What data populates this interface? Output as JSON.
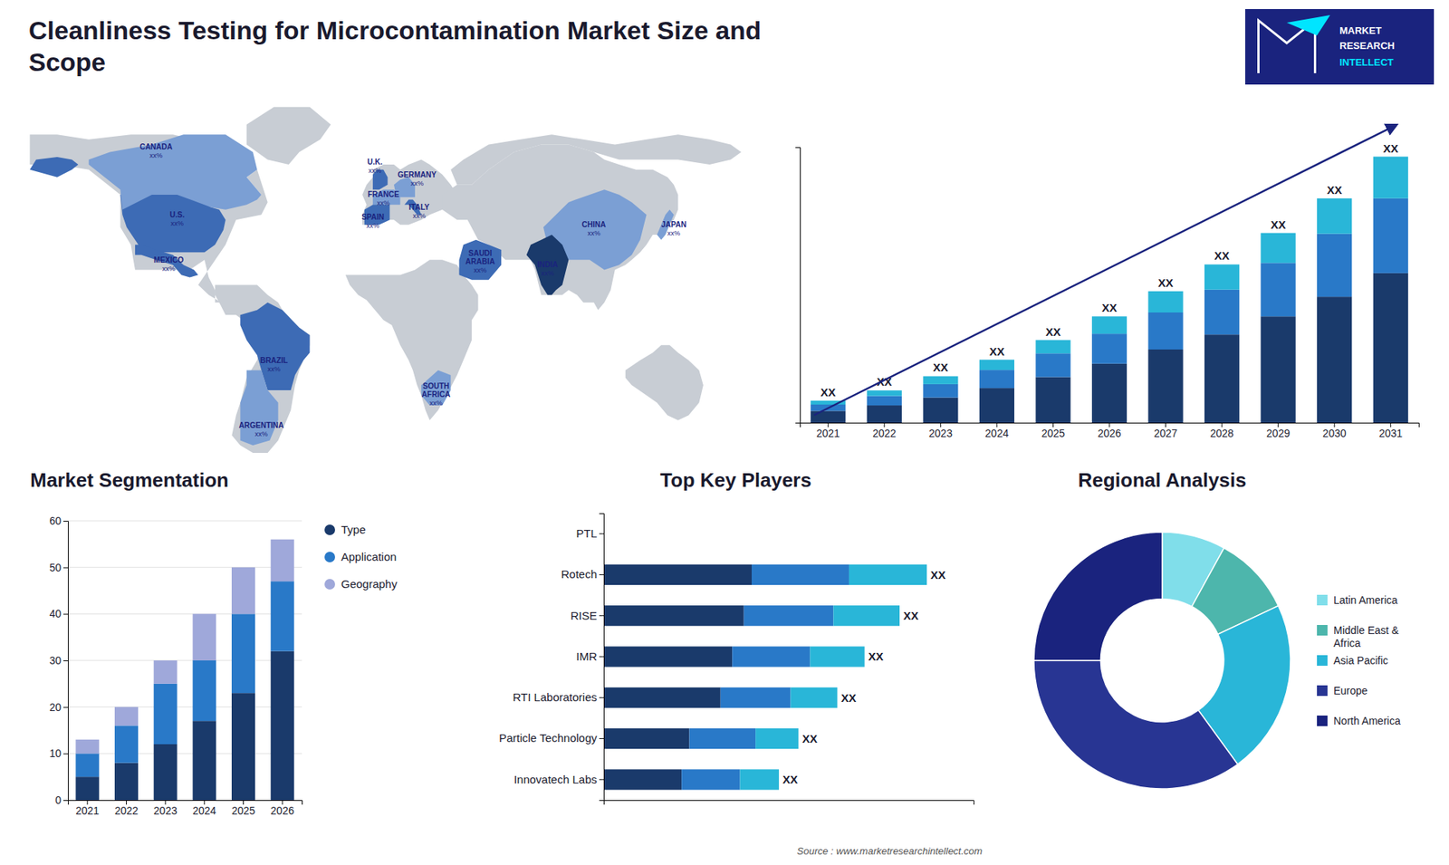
{
  "chart_data": [
    {
      "type": "map",
      "title": "Cleanliness Testing for Microcontamination Market Size and\nScope",
      "categories": [
        "CANADA",
        "U.S.",
        "MEXICO",
        "BRAZIL",
        "ARGENTINA",
        "U.K.",
        "FRANCE",
        "SPAIN",
        "GERMANY",
        "ITALY",
        "SAUDI\nARABIA",
        "SOUTH\nAFRICA",
        "CHINA",
        "INDIA",
        "JAPAN"
      ],
      "annotations": [
        "xx%",
        "xx%",
        "xx%",
        "xx%",
        "xx%",
        "xx%",
        "xx%",
        "xx%",
        "xx%",
        "xx%",
        "xx%",
        "xx%",
        "xx%",
        "xx%",
        "xx%"
      ],
      "colors": [
        "#7b9fd4",
        "#3d6bb5",
        "#3d6bb5",
        "#3d6bb5",
        "#7b9fd4",
        "#3d6bb5",
        "#7b9fd4",
        "#3d6bb5",
        "#7b9fd4",
        "#3d6bb5",
        "#3d6bb5",
        "#7b9fd4",
        "#7b9fd4",
        "#1a3a6b",
        "#7b9fd4"
      ],
      "color": "#c8cdd4"
    },
    {
      "type": "bar",
      "stacked": true,
      "categories": [
        "2021",
        "2022",
        "2023",
        "2024",
        "2025",
        "2026",
        "2027",
        "2028",
        "2029",
        "2030",
        "2031"
      ],
      "series": [
        {
          "color": "#1a3a6b",
          "values": [
            1.5,
            2.2,
            3.2,
            4.4,
            5.8,
            7.5,
            9.3,
            11.2,
            13.5,
            16.0,
            19.0
          ]
        },
        {
          "color": "#2979c8",
          "values": [
            0.8,
            1.2,
            1.7,
            2.3,
            3.0,
            3.8,
            4.7,
            5.7,
            6.8,
            8.0,
            9.5
          ]
        },
        {
          "color": "#29b6d8",
          "values": [
            0.5,
            0.7,
            1.0,
            1.3,
            1.7,
            2.2,
            2.7,
            3.2,
            3.8,
            4.5,
            5.3
          ],
          "value_labels": [
            "XX",
            "XX",
            "XX",
            "XX",
            "XX",
            "XX",
            "XX",
            "XX",
            "XX",
            "XX",
            "XX"
          ]
        }
      ],
      "ylim": [
        0,
        35
      ],
      "tick_labels": "x",
      "annotations": [
        "MARKET",
        "RESEARCH",
        "INTELLECT"
      ]
    },
    {
      "type": "bar",
      "stacked": true,
      "title": "Market Segmentation",
      "categories": [
        "2021",
        "2022",
        "2023",
        "2024",
        "2025",
        "2026"
      ],
      "series": [
        {
          "name": "Type",
          "color": "#1a3a6b",
          "values": [
            5,
            8,
            12,
            17,
            23,
            32
          ]
        },
        {
          "name": "Application",
          "color": "#2979c8",
          "values": [
            5,
            8,
            13,
            13,
            17,
            15
          ]
        },
        {
          "name": "Geography",
          "color": "#9fa8da",
          "values": [
            3,
            4,
            5,
            10,
            10,
            9
          ]
        }
      ],
      "ylim": [
        0,
        60
      ],
      "yticks": [
        0,
        10,
        20,
        30,
        40,
        50,
        60
      ],
      "grid": true,
      "legend": "right"
    },
    {
      "type": "bar",
      "orientation": "horizontal",
      "stacked": true,
      "title": "Top Key Players",
      "categories": [
        "PTL",
        "Rotech",
        "RISE",
        "IMR",
        "RTI Laboratories",
        "Particle Technology",
        "Innovatech Labs"
      ],
      "series": [
        {
          "color": "#1a3a6b",
          "values": [
            0.0,
            0.38,
            0.36,
            0.33,
            0.3,
            0.22,
            0.2
          ]
        },
        {
          "color": "#2979c8",
          "values": [
            0.0,
            0.25,
            0.23,
            0.2,
            0.18,
            0.17,
            0.15
          ]
        },
        {
          "color": "#29b6d8",
          "values": [
            0.0,
            0.2,
            0.17,
            0.14,
            0.12,
            0.11,
            0.1
          ],
          "value_labels": [
            null,
            "XX",
            "XX",
            "XX",
            "XX",
            "XX",
            "XX"
          ]
        }
      ],
      "xlim": [
        0,
        0.95
      ],
      "tick_labels": "y"
    },
    {
      "type": "pie",
      "title": "Regional Analysis",
      "categories": [
        "Latin America",
        "Middle East &\nAfrica",
        "Asia Pacific",
        "Europe",
        "North America"
      ],
      "values": [
        8,
        10,
        22,
        35,
        25
      ],
      "colors": [
        "#80deea",
        "#4db6ac",
        "#29b6d8",
        "#283593",
        "#1a237e"
      ],
      "legend": "right",
      "annotations": [
        "Source : www.marketresearchintellect.com"
      ]
    }
  ]
}
